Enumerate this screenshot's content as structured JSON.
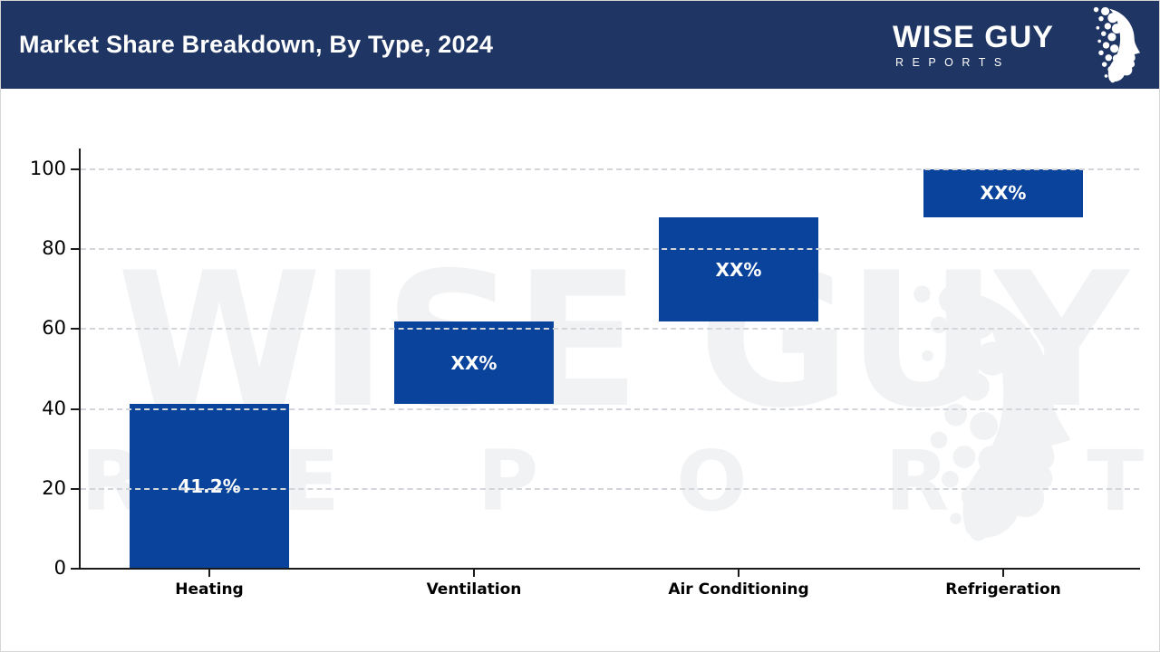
{
  "header": {
    "title": "Market Share Breakdown, By Type, 2024",
    "logo": {
      "name": "WISE GUY",
      "subtitle": "REPORTS"
    }
  },
  "watermark": {
    "line1": "WISE GUY",
    "line2": "R E P O R T S"
  },
  "chart_data": {
    "type": "bar",
    "subtype": "waterfall",
    "title": "Market Share Breakdown, By Type, 2024",
    "categories": [
      "Heating",
      "Ventilation",
      "Air Conditioning",
      "Refrigeration"
    ],
    "series": [
      {
        "name": "Market Share",
        "segments": [
          {
            "from": 0,
            "to": 41.2
          },
          {
            "from": 41.2,
            "to": 61.8
          },
          {
            "from": 61.8,
            "to": 88.0
          },
          {
            "from": 88.0,
            "to": 100.0
          }
        ]
      }
    ],
    "bar_labels": [
      "41.2%",
      "XX%",
      "XX%",
      "XX%"
    ],
    "yticks": [
      0,
      20,
      40,
      60,
      80,
      100
    ],
    "ylim": [
      0,
      100
    ],
    "xlabel": "",
    "ylabel": "",
    "grid": "horizontal-dashed",
    "legend": "none",
    "colors": {
      "bar": "#09439B",
      "header_bg": "#1F3563",
      "grid": "#D2D5D9",
      "watermark": "#F1F2F4",
      "axis": "#1A1A1A",
      "bar_label": "#FFFFFF"
    }
  }
}
